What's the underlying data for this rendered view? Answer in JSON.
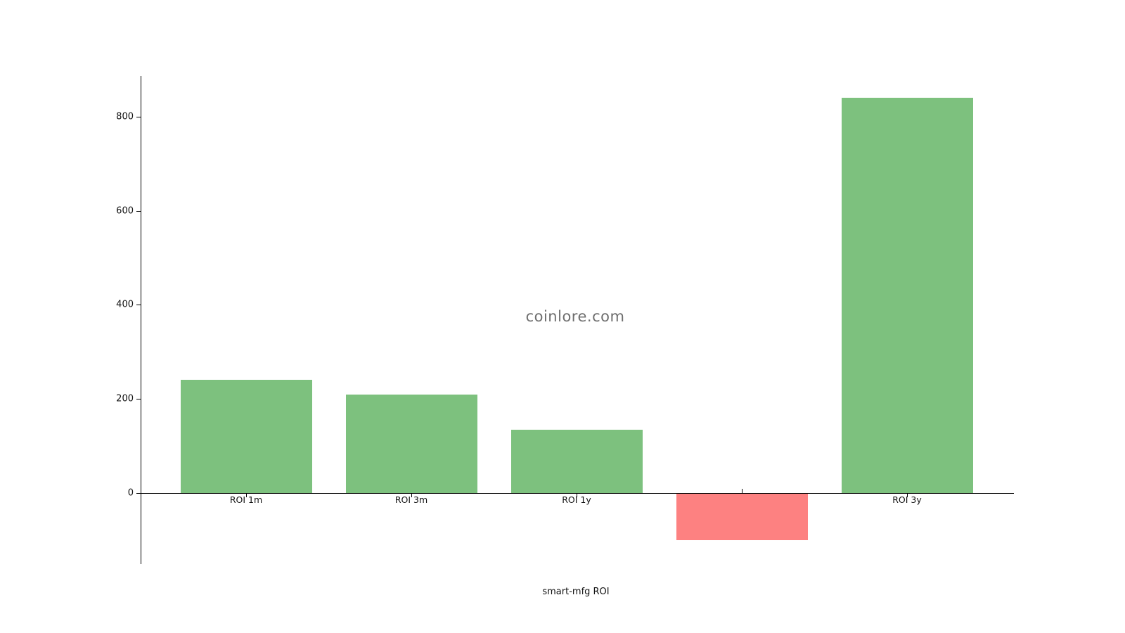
{
  "watermark": {
    "text": "coinlore.com",
    "color": "#6e6e6e"
  },
  "chart_data": {
    "type": "bar",
    "title": "smart-mfg ROI",
    "categories": [
      "ROI 1m",
      "ROI 3m",
      "ROI 1y",
      "",
      "ROI 3y"
    ],
    "values": [
      240,
      210,
      135,
      -100,
      840
    ],
    "positive_color": "#7dc17e",
    "negative_color": "#fd8181",
    "yticks": [
      0,
      200,
      400,
      600,
      800
    ],
    "ylim": [
      -150,
      890
    ],
    "xlabel": "smart-mfg ROI",
    "ylabel": "",
    "grid": false,
    "legend": false,
    "axis_color": "#000000",
    "note": "fourth category tick label is obscured by the negative (red) bar"
  }
}
